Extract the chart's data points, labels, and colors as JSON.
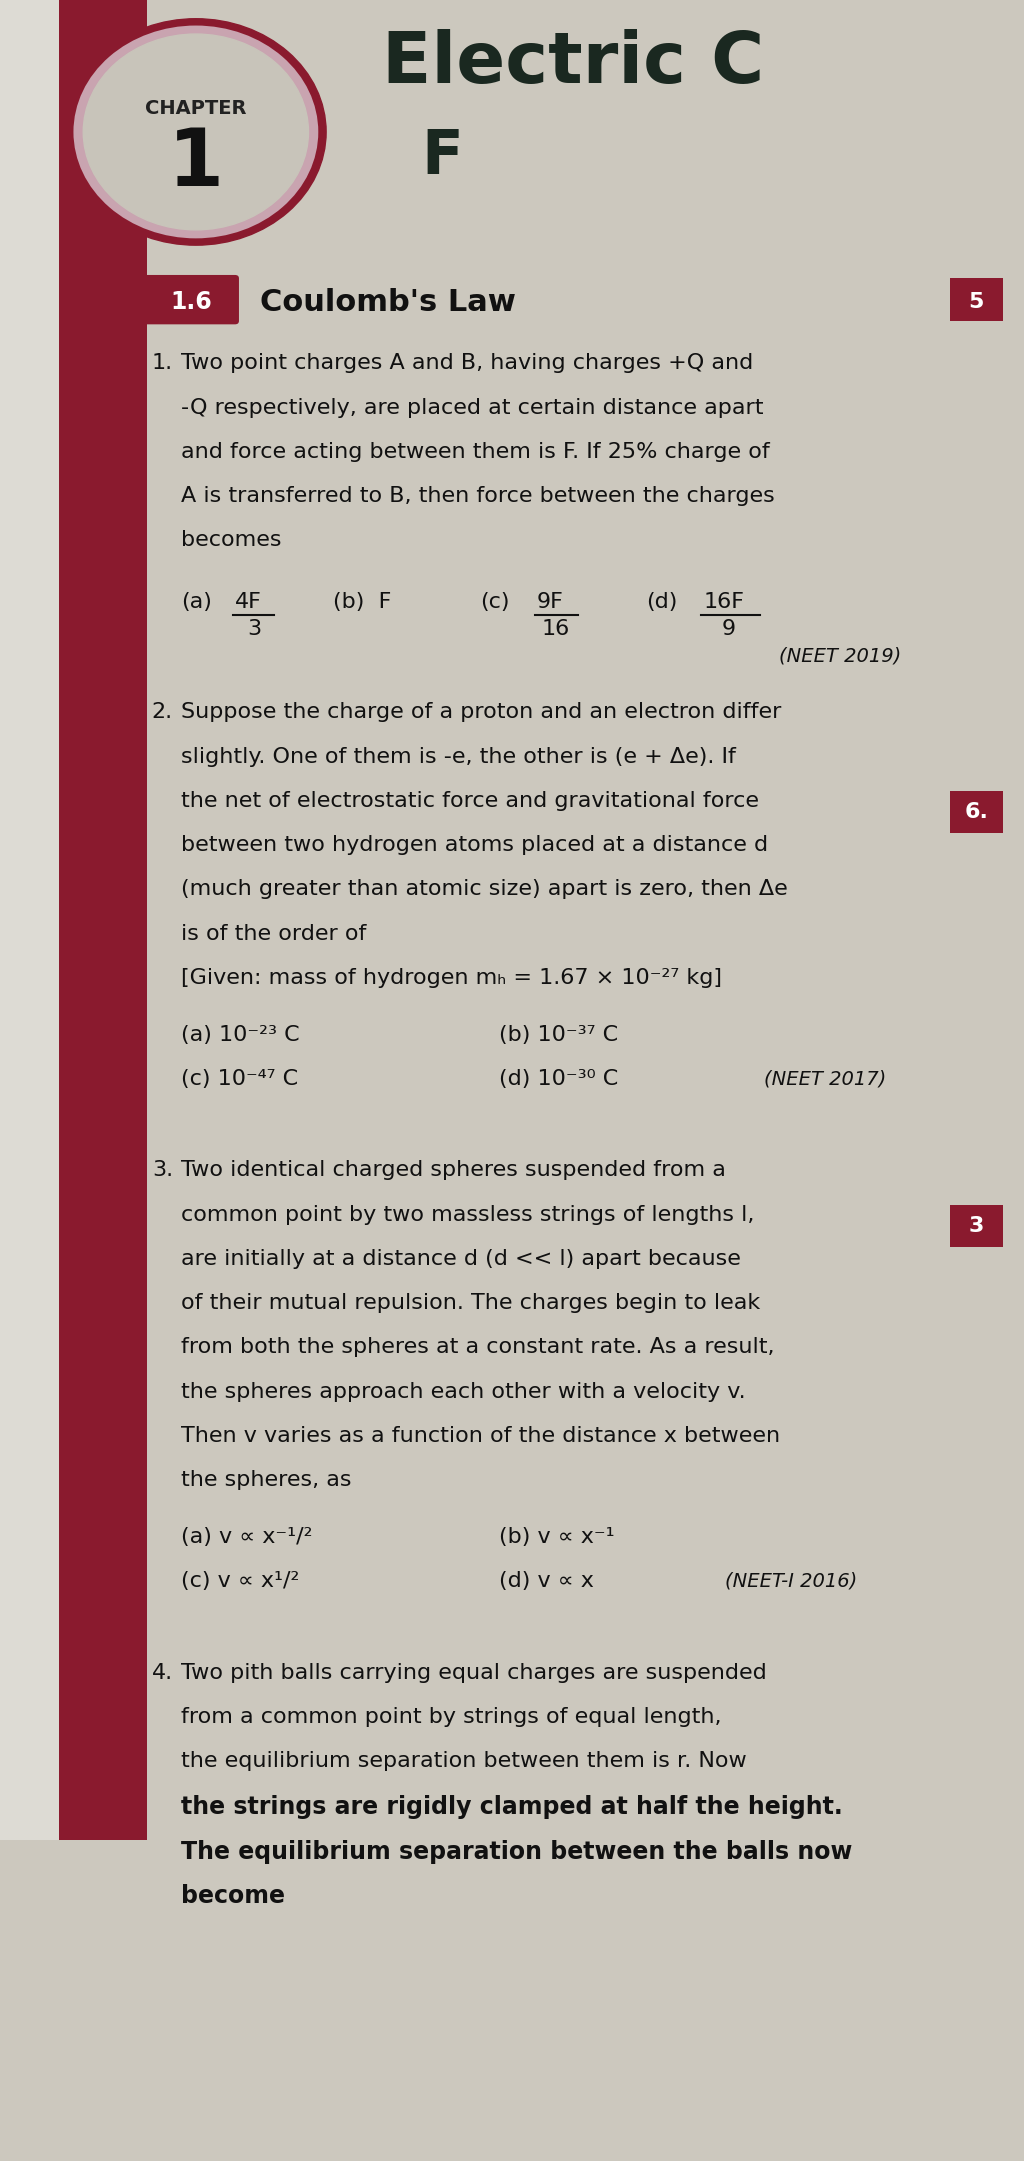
{
  "page_bg": "#ccc8be",
  "left_bg": "#b8b4aa",
  "crimson": "#8a1a2e",
  "text_color": "#111111",
  "dark_text": "#0a0a0a",
  "chapter_inner": "#c8c4ba",
  "chapter_ring": "#b0aaa8",
  "chapter_label": "CHAPTER",
  "chapter_number": "1",
  "title_main": "Electric C",
  "title_sub": "F",
  "section_label": "1.6",
  "section_title": "Coulomb's Law",
  "q1_lines": [
    "Two point charges A and B, having charges +Q and",
    "-Q respectively, are placed at certain distance apart",
    "and force acting between them is F. If 25% charge of",
    "A is transferred to B, then force between the charges",
    "becomes"
  ],
  "q1_exam": "(NEET 2019)",
  "q2_lines": [
    "Suppose the charge of a proton and an electron differ",
    "slightly. One of them is -e, the other is (e + Δe). If",
    "the net of electrostatic force and gravitational force",
    "between two hydrogen atoms placed at a distance d",
    "(much greater than atomic size) apart is zero, then Δe",
    "is of the order of",
    "[Given: mass of hydrogen mₕ = 1.67 × 10⁻²⁷ kg]"
  ],
  "q2_exam": "(NEET 2017)",
  "q3_lines": [
    "Two identical charged spheres suspended from a",
    "common point by two massless strings of lengths l,",
    "are initially at a distance d (d << l) apart because",
    "of their mutual repulsion. The charges begin to leak",
    "from both the spheres at a constant rate. As a result,",
    "the spheres approach each other with a velocity v.",
    "Then v varies as a function of the distance x between",
    "the spheres, as"
  ],
  "q3_exam": "(NEET-I 2016)",
  "q4_lines": [
    "Two pith balls carrying equal charges are suspended",
    "from a common point by strings of equal length,",
    "the equilibrium separation between them is r. Now",
    "the strings are rigidly clamped at half the height.",
    "The equilibrium separation between the balls now",
    "become"
  ]
}
